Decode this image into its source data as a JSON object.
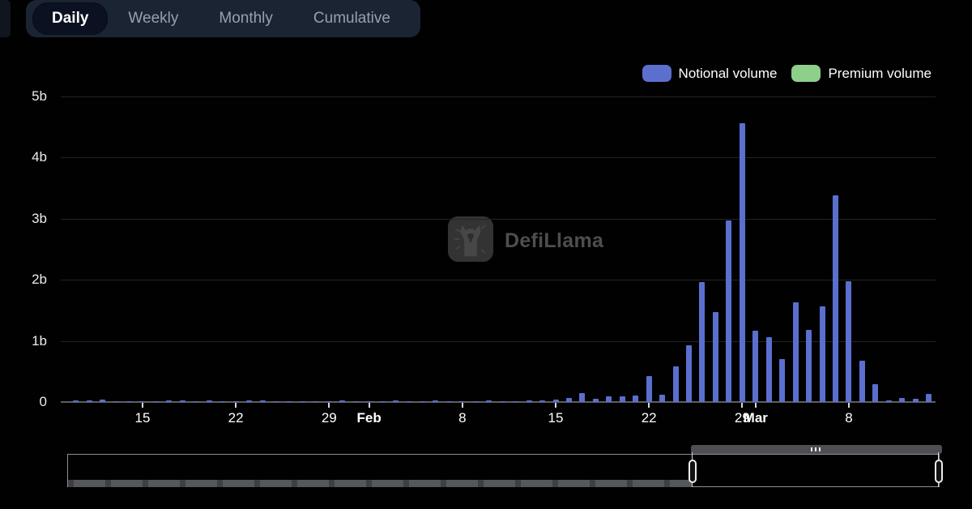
{
  "tabs": {
    "items": [
      {
        "label": "Daily",
        "active": true
      },
      {
        "label": "Weekly",
        "active": false
      },
      {
        "label": "Monthly",
        "active": false
      },
      {
        "label": "Cumulative",
        "active": false
      }
    ]
  },
  "legend": {
    "items": [
      {
        "label": "Notional volume",
        "color": "#5b6fce"
      },
      {
        "label": "Premium volume",
        "color": "#8ecf8a"
      }
    ]
  },
  "watermark": {
    "text": "DefiLlama"
  },
  "colors": {
    "background": "#010102",
    "tabbar_bg": "#1b2432",
    "active_tab_bg": "#0b1120",
    "notional_blue": "#5b6fce",
    "premium_green": "#8ecf8a",
    "gridline": "#232323",
    "axis_line": "#5e5e5e"
  },
  "chart_data": {
    "type": "bar",
    "title": "",
    "xlabel": "",
    "ylabel": "",
    "unit": "billions USD",
    "ylim": [
      0,
      5
    ],
    "grid": true,
    "legend_position": "top-right",
    "x": [
      "Jan 10",
      "Jan 11",
      "Jan 12",
      "Jan 13",
      "Jan 14",
      "Jan 15",
      "Jan 16",
      "Jan 17",
      "Jan 18",
      "Jan 19",
      "Jan 20",
      "Jan 21",
      "Jan 22",
      "Jan 23",
      "Jan 24",
      "Jan 25",
      "Jan 26",
      "Jan 27",
      "Jan 28",
      "Jan 29",
      "Jan 30",
      "Jan 31",
      "Feb 1",
      "Feb 2",
      "Feb 3",
      "Feb 4",
      "Feb 5",
      "Feb 6",
      "Feb 7",
      "Feb 8",
      "Feb 9",
      "Feb 10",
      "Feb 11",
      "Feb 12",
      "Feb 13",
      "Feb 14",
      "Feb 15",
      "Feb 16",
      "Feb 17",
      "Feb 18",
      "Feb 19",
      "Feb 20",
      "Feb 21",
      "Feb 22",
      "Feb 23",
      "Feb 24",
      "Feb 25",
      "Feb 26",
      "Feb 27",
      "Feb 28",
      "Feb 29",
      "Mar 1",
      "Mar 2",
      "Mar 3",
      "Mar 4",
      "Mar 5",
      "Mar 6",
      "Mar 7",
      "Mar 8",
      "Mar 9",
      "Mar 10",
      "Mar 11",
      "Mar 12",
      "Mar 13",
      "Mar 14"
    ],
    "series": [
      {
        "name": "Notional volume",
        "color": "#5b6fce",
        "values": [
          0.03,
          0.02,
          0.035,
          0.005,
          0.005,
          0.008,
          0.01,
          0.025,
          0.02,
          0.015,
          0.025,
          0.005,
          0.008,
          0.03,
          0.03,
          0.005,
          0.01,
          0.008,
          0.01,
          0.005,
          0.03,
          0.005,
          0.01,
          0.008,
          0.025,
          0.01,
          0.01,
          0.02,
          0.01,
          0.015,
          0.005,
          0.02,
          0.01,
          0.01,
          0.02,
          0.03,
          0.04,
          0.07,
          0.14,
          0.05,
          0.09,
          0.09,
          0.1,
          0.43,
          0.12,
          0.58,
          0.93,
          1.96,
          1.47,
          2.97,
          4.56,
          1.17,
          1.06,
          0.7,
          1.63,
          1.18,
          1.56,
          3.38,
          1.97,
          0.68,
          0.29,
          0.02,
          0.06,
          0.05,
          0.13
        ]
      },
      {
        "name": "Premium volume",
        "color": "#8ecf8a",
        "values": [
          0,
          0,
          0,
          0,
          0,
          0,
          0,
          0,
          0,
          0,
          0,
          0,
          0,
          0,
          0,
          0,
          0,
          0,
          0,
          0,
          0,
          0,
          0,
          0,
          0,
          0,
          0,
          0,
          0,
          0,
          0,
          0,
          0,
          0,
          0,
          0,
          0,
          0,
          0,
          0,
          0,
          0,
          0,
          0,
          0,
          0,
          0,
          0,
          0,
          0,
          0,
          0,
          0,
          0,
          0,
          0,
          0,
          0,
          0,
          0,
          0,
          0,
          0,
          0,
          0
        ]
      }
    ],
    "y_ticks": [
      {
        "label": "0",
        "value": 0
      },
      {
        "label": "1b",
        "value": 1
      },
      {
        "label": "2b",
        "value": 2
      },
      {
        "label": "3b",
        "value": 3
      },
      {
        "label": "4b",
        "value": 4
      },
      {
        "label": "5b",
        "value": 5
      }
    ],
    "x_ticks": [
      {
        "label": "15",
        "index": 5,
        "bold": false
      },
      {
        "label": "22",
        "index": 12,
        "bold": false
      },
      {
        "label": "29",
        "index": 19,
        "bold": false
      },
      {
        "label": "Feb",
        "index": 22,
        "bold": true
      },
      {
        "label": "8",
        "index": 29,
        "bold": false
      },
      {
        "label": "15",
        "index": 36,
        "bold": false
      },
      {
        "label": "22",
        "index": 43,
        "bold": false
      },
      {
        "label": "29",
        "index": 50,
        "bold": false
      },
      {
        "label": "Mar",
        "index": 51,
        "bold": true
      },
      {
        "label": "8",
        "index": 58,
        "bold": false
      }
    ]
  }
}
